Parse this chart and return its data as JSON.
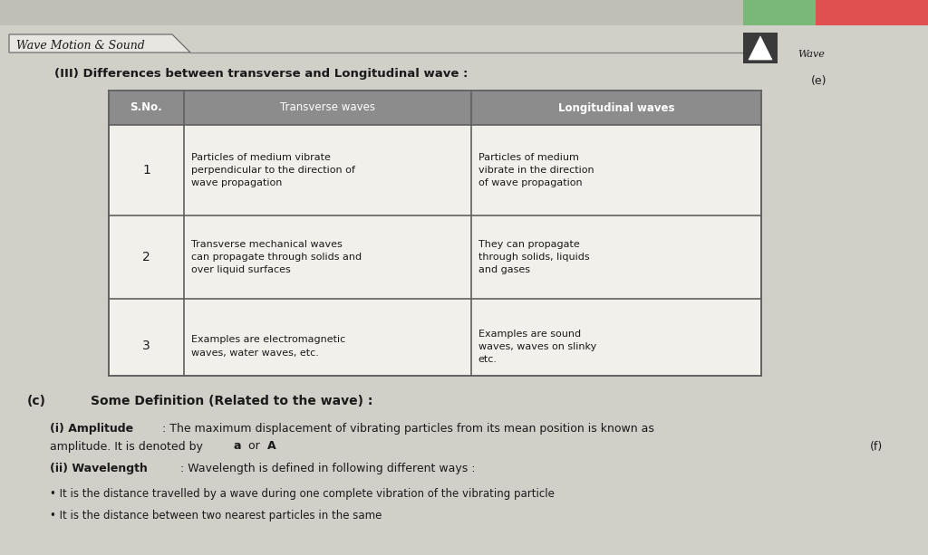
{
  "title_top": "Wave Motion & Sound",
  "subtitle": "(III) Differences between transverse and Longitudinal wave :",
  "table_headers": [
    "S.No.",
    "Transverse waves",
    "Longitudinal waves"
  ],
  "rows": [
    {
      "sno": "1",
      "transverse": "Particles of medium vibrate\nperpendicular to the direction of\nwave propagation",
      "longitudinal": "Particles of medium\nvibrate in the direction\nof wave propagation"
    },
    {
      "sno": "2",
      "transverse": "Transverse mechanical waves\ncan propagate through solids and\nover liquid surfaces",
      "longitudinal": "They can propagate\nthrough solids, liquids\nand gases"
    },
    {
      "sno": "3",
      "transverse": "Examples are electromagnetic\nwaves, water waves, etc.",
      "longitudinal": "Examples are sound\nwaves, waves on slinky\netc."
    }
  ],
  "section_c_label": "(c)",
  "section_c_text": "Some Definition (Related to the wave) :",
  "amp_bold": "(i) Amplitude",
  "amp_rest": " : The maximum displacement of vibrating particles from its mean position is known as",
  "amp_line2_pre": "amplitude. It is denoted by ",
  "amp_a": "a",
  "amp_or": " or ",
  "amp_A": "A",
  "wl_bold": "(ii) Wavelength",
  "wl_rest": " : Wavelength is defined in following different ways :",
  "bullet1": "• It is the distance travelled by a wave during one complete vibration of the vibrating particle",
  "bullet2": "• It is the distance between two nearest particles in the same",
  "right_label1": "Wave",
  "right_label2": "(e)",
  "right_label3": "(f)",
  "bg_color": "#d0cfc8",
  "page_top_color": "#c0bfb5",
  "header_tab_color": "#e8e6e0",
  "header_bg": "#8c8c8c",
  "header_text_color": "#ffffff",
  "table_bg": "#f2f0eb",
  "border_color": "#606060",
  "text_color": "#1a1a1a",
  "icon_color": "#3a3a3a"
}
